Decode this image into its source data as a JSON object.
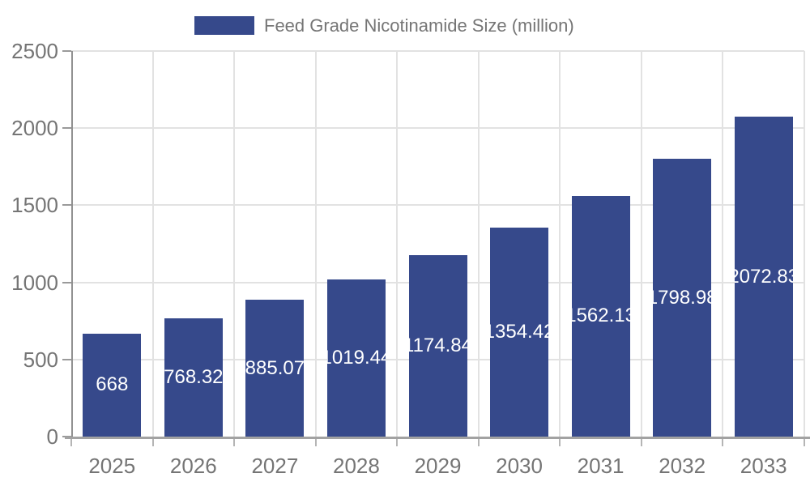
{
  "legend": {
    "label": "Feed Grade Nicotinamide Size (million)"
  },
  "chart_data": {
    "type": "bar",
    "title": "Feed Grade Nicotinamide Size (million)",
    "categories": [
      "2025",
      "2026",
      "2027",
      "2028",
      "2029",
      "2030",
      "2031",
      "2032",
      "2033"
    ],
    "values": [
      668,
      768.32,
      885.07,
      1019.44,
      1174.84,
      1354.42,
      1562.13,
      1798.98,
      2072.83
    ],
    "value_labels": [
      "668",
      "768.32",
      "885.07",
      "1019.44",
      "1174.84",
      "1354.42",
      "1562.13",
      "1798.98",
      "2072.83"
    ],
    "xlabel": "",
    "ylabel": "",
    "ylim": [
      0,
      2500
    ],
    "yticks": [
      0,
      500,
      1000,
      1500,
      2000,
      2500
    ],
    "grid": true,
    "legend_position": "top",
    "colors": {
      "bar": "#36498B",
      "value_label": "#ffffff",
      "axis_text": "#757575",
      "grid_line": "#e2e2e2",
      "axis_line": "#9a9a9a"
    }
  }
}
